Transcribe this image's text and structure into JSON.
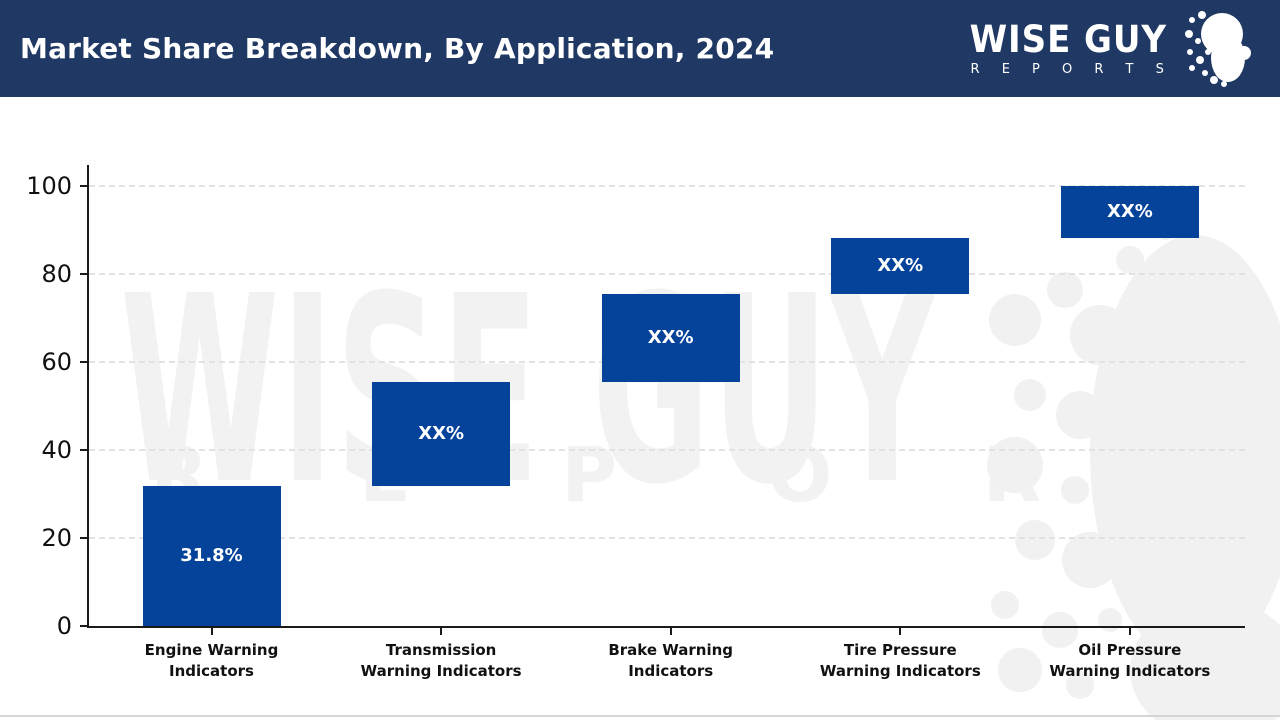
{
  "header": {
    "title": "Market Share Breakdown, By Application, 2024",
    "logo": {
      "line1": "WISE GUY",
      "line2": "R E P O R T S"
    }
  },
  "watermark": {
    "line1": "WISE GUY",
    "line2": "R E P O R T S"
  },
  "colors": {
    "header_bg": "#1f3864",
    "bar": "#05439B",
    "bar_label": "#ffffff",
    "axis": "#1a1a1a",
    "gridline": "#e2e2e2",
    "watermark": "#f2f2f2"
  },
  "chart_data": {
    "type": "bar",
    "subtype": "waterfall",
    "title": "Market Share Breakdown, By Application, 2024",
    "xlabel": "",
    "ylabel": "",
    "ylim": [
      0,
      100
    ],
    "yticks": [
      0,
      20,
      40,
      60,
      80,
      100
    ],
    "grid": "horizontal-dashed",
    "legend": "none",
    "categories": [
      "Engine Warning\nIndicators",
      "Transmission\nWarning Indicators",
      "Brake Warning\nIndicators",
      "Tire Pressure\nWarning Indicators",
      "Oil Pressure\nWarning Indicators"
    ],
    "segments": [
      {
        "category": "Engine Warning Indicators",
        "start": 0,
        "end": 31.8,
        "value": 31.8,
        "label": "31.8%"
      },
      {
        "category": "Transmission Warning Indicators",
        "start": 31.8,
        "end": 55.5,
        "value": 23.7,
        "label": "XX%"
      },
      {
        "category": "Brake Warning Indicators",
        "start": 55.5,
        "end": 75.5,
        "value": 20.0,
        "label": "XX%"
      },
      {
        "category": "Tire Pressure Warning Indicators",
        "start": 75.5,
        "end": 88.2,
        "value": 12.7,
        "label": "XX%"
      },
      {
        "category": "Oil Pressure Warning Indicators",
        "start": 88.2,
        "end": 100,
        "value": 11.8,
        "label": "XX%"
      }
    ]
  }
}
